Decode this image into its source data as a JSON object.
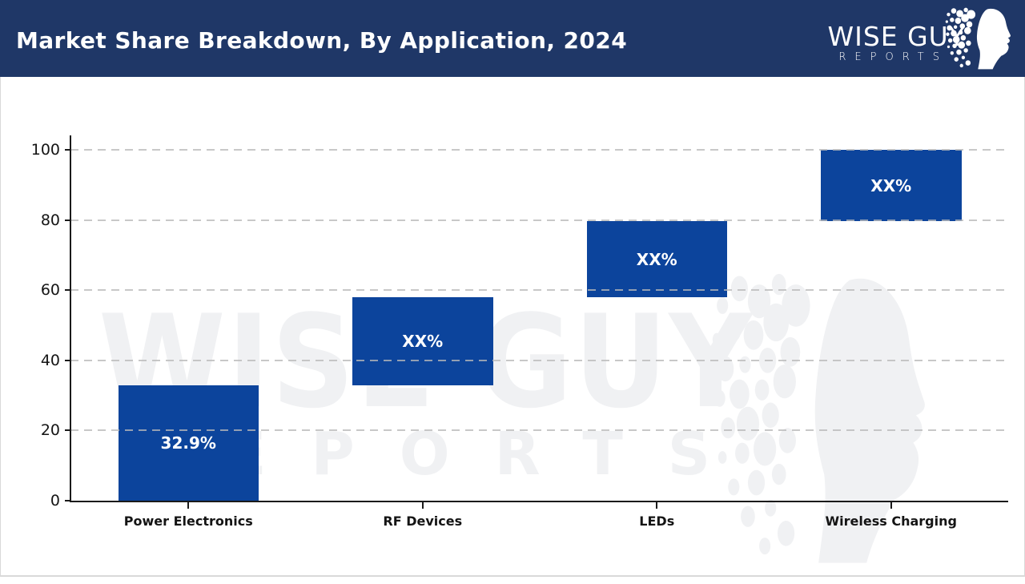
{
  "header": {
    "title": "Market Share Breakdown, By Application, 2024",
    "brand": {
      "line1": "WISE GUY",
      "line2": "REPORTS"
    }
  },
  "watermark": {
    "line1": "WISE GUY",
    "line2": "REPORTS"
  },
  "chart_data": {
    "type": "bar",
    "subtype": "waterfall",
    "title": "Market Share Breakdown, By Application, 2024",
    "categories": [
      "Power Electronics",
      "RF Devices",
      "LEDs",
      "Wireless Charging"
    ],
    "segments": [
      {
        "category": "Power Electronics",
        "start": 0,
        "end": 32.9,
        "label": "32.9%"
      },
      {
        "category": "RF Devices",
        "start": 32.9,
        "end": 57.9,
        "label": "XX%"
      },
      {
        "category": "LEDs",
        "start": 57.9,
        "end": 79.6,
        "label": "XX%"
      },
      {
        "category": "Wireless Charging",
        "start": 79.6,
        "end": 100,
        "label": "XX%"
      }
    ],
    "y_ticks": [
      0,
      20,
      40,
      60,
      80,
      100
    ],
    "ylim": [
      0,
      104
    ],
    "xlabel": "",
    "ylabel": "",
    "legend": null,
    "grid": "horizontal-dashed",
    "bar_color": "#0c449c"
  },
  "colors": {
    "header_bg": "#1f3767",
    "bar": "#0c449c",
    "watermark": "#f0f1f3",
    "grid": "#b9b9b9",
    "axis": "#1a1a1a"
  }
}
